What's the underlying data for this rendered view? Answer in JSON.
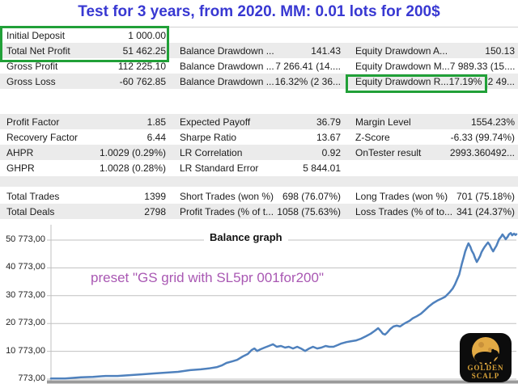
{
  "title": "Test for 3 years, from 2020. MM: 0.01 lots for 200$",
  "colors": {
    "title_blue": "#3838d2",
    "highlight_green": "#21a038",
    "row_shade": "#ebebeb",
    "balance_line": "#4f81bd",
    "preset_purple": "#a958b3",
    "logo_gold": "#d8a238"
  },
  "stats_table": {
    "rows": [
      [
        [
          "Initial Deposit",
          "1 000.00"
        ],
        [
          "",
          ""
        ],
        [
          "",
          ""
        ]
      ],
      [
        [
          "Total Net Profit",
          "51 462.25"
        ],
        [
          "Balance Drawdown ...",
          "141.43"
        ],
        [
          "Equity Drawdown A...",
          "150.13"
        ]
      ],
      [
        [
          "Gross Profit",
          "112 225.10"
        ],
        [
          "Balance Drawdown ...",
          "7 266.41 (14...."
        ],
        [
          "Equity Drawdown M...",
          "7 989.33 (15...."
        ]
      ],
      [
        [
          "Gross Loss",
          "-60 762.85"
        ],
        [
          "Balance Drawdown ...",
          "16.32% (2 36..."
        ],
        [
          "Equity Drawdown R...",
          "17.19% (2 49..."
        ]
      ],
      [
        [
          "Profit Factor",
          "1.85"
        ],
        [
          "Expected Payoff",
          "36.79"
        ],
        [
          "Margin Level",
          "1554.23%"
        ]
      ],
      [
        [
          "Recovery Factor",
          "6.44"
        ],
        [
          "Sharpe Ratio",
          "13.67"
        ],
        [
          "Z-Score",
          "-6.33 (99.74%)"
        ]
      ],
      [
        [
          "AHPR",
          "1.0029 (0.29%)"
        ],
        [
          "LR Correlation",
          "0.92"
        ],
        [
          "OnTester result",
          "2993.360492..."
        ]
      ],
      [
        [
          "GHPR",
          "1.0028 (0.28%)"
        ],
        [
          "LR Standard Error",
          "5 844.01"
        ],
        [
          "",
          ""
        ]
      ],
      [
        [
          "Total Trades",
          "1399"
        ],
        [
          "Short Trades (won %)",
          "698 (76.07%)"
        ],
        [
          "Long Trades (won %)",
          "701 (75.18%)"
        ]
      ],
      [
        [
          "Total Deals",
          "2798"
        ],
        [
          "Profit Trades (% of t...",
          "1058 (75.63%)"
        ],
        [
          "Loss Trades (% of to...",
          "341 (24.37%)"
        ]
      ]
    ]
  },
  "watermark": "preset \"GS grid with SL5pr 001for200\"",
  "logo": {
    "line1": "GOLDEN",
    "line2": "SCALP"
  },
  "chart_data": {
    "type": "line",
    "title": "Balance graph",
    "xlabel": "",
    "ylabel": "",
    "grid": true,
    "ylim": [
      773,
      56000
    ],
    "yticks": [
      {
        "label": "50 773,00",
        "value": 50773
      },
      {
        "label": "40 773,00",
        "value": 40773
      },
      {
        "label": "30 773,00",
        "value": 30773
      },
      {
        "label": "20 773,00",
        "value": 20773
      },
      {
        "label": "10 773,00",
        "value": 10773
      },
      {
        "label": "773,00",
        "value": 773
      }
    ],
    "series": [
      {
        "name": "Balance",
        "color": "#4f81bd",
        "points": [
          [
            0.0,
            1000
          ],
          [
            0.03,
            1000
          ],
          [
            0.064,
            1400
          ],
          [
            0.09,
            1600
          ],
          [
            0.117,
            1900
          ],
          [
            0.143,
            1900
          ],
          [
            0.169,
            2200
          ],
          [
            0.195,
            2500
          ],
          [
            0.221,
            2800
          ],
          [
            0.247,
            3100
          ],
          [
            0.273,
            3400
          ],
          [
            0.299,
            4000
          ],
          [
            0.322,
            4300
          ],
          [
            0.339,
            4600
          ],
          [
            0.357,
            5100
          ],
          [
            0.367,
            5700
          ],
          [
            0.377,
            6600
          ],
          [
            0.39,
            7200
          ],
          [
            0.4,
            7700
          ],
          [
            0.412,
            8900
          ],
          [
            0.423,
            9800
          ],
          [
            0.431,
            11200
          ],
          [
            0.437,
            11800
          ],
          [
            0.443,
            10900
          ],
          [
            0.45,
            11500
          ],
          [
            0.459,
            12100
          ],
          [
            0.468,
            12700
          ],
          [
            0.477,
            13300
          ],
          [
            0.485,
            12400
          ],
          [
            0.494,
            12700
          ],
          [
            0.503,
            12100
          ],
          [
            0.511,
            12400
          ],
          [
            0.52,
            11800
          ],
          [
            0.529,
            12400
          ],
          [
            0.537,
            11800
          ],
          [
            0.546,
            10900
          ],
          [
            0.555,
            11800
          ],
          [
            0.563,
            12400
          ],
          [
            0.572,
            11800
          ],
          [
            0.581,
            12100
          ],
          [
            0.59,
            12700
          ],
          [
            0.598,
            12400
          ],
          [
            0.607,
            12400
          ],
          [
            0.616,
            13000
          ],
          [
            0.624,
            13600
          ],
          [
            0.635,
            14100
          ],
          [
            0.645,
            14400
          ],
          [
            0.656,
            14700
          ],
          [
            0.666,
            15300
          ],
          [
            0.677,
            16200
          ],
          [
            0.687,
            17100
          ],
          [
            0.696,
            18200
          ],
          [
            0.703,
            19100
          ],
          [
            0.708,
            18200
          ],
          [
            0.713,
            17100
          ],
          [
            0.718,
            16800
          ],
          [
            0.723,
            17600
          ],
          [
            0.729,
            18800
          ],
          [
            0.736,
            19700
          ],
          [
            0.743,
            20000
          ],
          [
            0.75,
            19700
          ],
          [
            0.757,
            20500
          ],
          [
            0.763,
            21100
          ],
          [
            0.77,
            21700
          ],
          [
            0.777,
            22600
          ],
          [
            0.786,
            23400
          ],
          [
            0.795,
            24300
          ],
          [
            0.803,
            25500
          ],
          [
            0.812,
            26900
          ],
          [
            0.821,
            28100
          ],
          [
            0.83,
            29000
          ],
          [
            0.838,
            29600
          ],
          [
            0.847,
            30400
          ],
          [
            0.856,
            31900
          ],
          [
            0.863,
            33300
          ],
          [
            0.868,
            34800
          ],
          [
            0.873,
            36800
          ],
          [
            0.877,
            38300
          ],
          [
            0.88,
            40300
          ],
          [
            0.883,
            42300
          ],
          [
            0.887,
            44700
          ],
          [
            0.89,
            46700
          ],
          [
            0.894,
            48400
          ],
          [
            0.897,
            49600
          ],
          [
            0.901,
            48400
          ],
          [
            0.904,
            47000
          ],
          [
            0.908,
            45800
          ],
          [
            0.911,
            44400
          ],
          [
            0.915,
            42900
          ],
          [
            0.918,
            43800
          ],
          [
            0.922,
            45000
          ],
          [
            0.925,
            46400
          ],
          [
            0.929,
            47600
          ],
          [
            0.932,
            48400
          ],
          [
            0.936,
            49300
          ],
          [
            0.939,
            49900
          ],
          [
            0.943,
            49000
          ],
          [
            0.946,
            47900
          ],
          [
            0.95,
            46700
          ],
          [
            0.953,
            47600
          ],
          [
            0.957,
            48700
          ],
          [
            0.96,
            49900
          ],
          [
            0.963,
            51100
          ],
          [
            0.967,
            51900
          ],
          [
            0.97,
            52800
          ],
          [
            0.974,
            51900
          ],
          [
            0.977,
            51100
          ],
          [
            0.981,
            51900
          ],
          [
            0.984,
            52800
          ],
          [
            0.988,
            53300
          ],
          [
            0.991,
            52500
          ],
          [
            0.995,
            53100
          ],
          [
            0.998,
            52600
          ],
          [
            1.0,
            52900
          ]
        ]
      }
    ]
  }
}
